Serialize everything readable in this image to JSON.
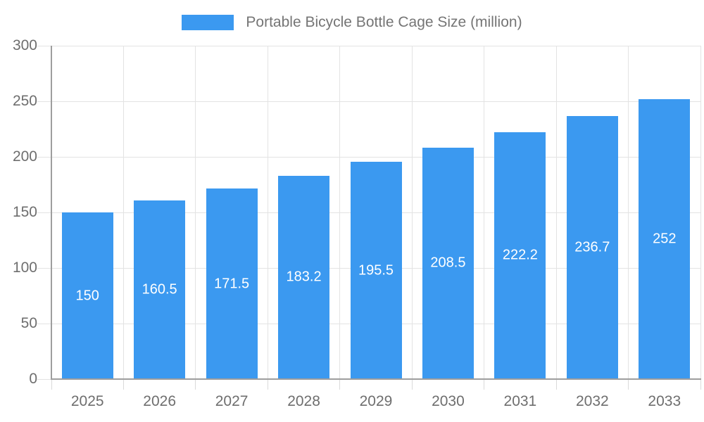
{
  "legend": {
    "label": "Portable Bicycle Bottle Cage Size (million)",
    "swatch_color": "#3b99f0"
  },
  "chart_data": {
    "type": "bar",
    "title": "Portable Bicycle Bottle Cage Size (million)",
    "categories": [
      "2025",
      "2026",
      "2027",
      "2028",
      "2029",
      "2030",
      "2031",
      "2032",
      "2033"
    ],
    "values": [
      150,
      160.5,
      171.5,
      183.2,
      195.5,
      208.5,
      222.2,
      236.7,
      252
    ],
    "xlabel": "",
    "ylabel": "",
    "ylim": [
      0,
      300
    ],
    "yticks": [
      0,
      50,
      100,
      150,
      200,
      250,
      300
    ],
    "grid": true,
    "legend_position": "top-center",
    "bar_color": "#3b99f0",
    "value_label_color": "#ffffff",
    "grid_color": "#e3e3e3",
    "axis_color": "#9e9e9e",
    "tick_label_color": "#6e6e6e",
    "legend_text_color": "#757575"
  }
}
